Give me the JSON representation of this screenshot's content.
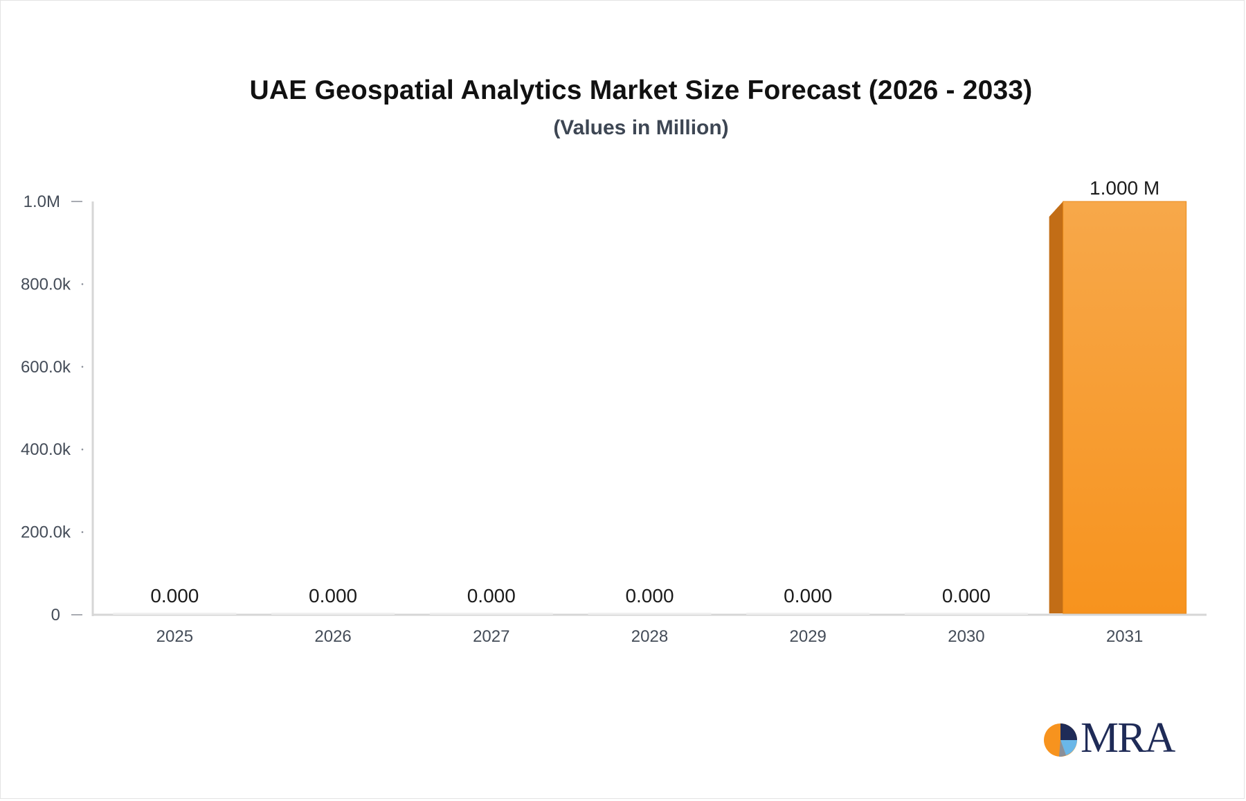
{
  "chart_data": {
    "type": "bar",
    "title": "UAE Geospatial Analytics Market Size Forecast (2026 - 2033)",
    "subtitle": "(Values in Million)",
    "categories": [
      "2025",
      "2026",
      "2027",
      "2028",
      "2029",
      "2030",
      "2031"
    ],
    "values": [
      0,
      0,
      0,
      0,
      0,
      0,
      1000000
    ],
    "data_labels": [
      "0.000",
      "0.000",
      "0.000",
      "0.000",
      "0.000",
      "0.000",
      "1.000 M"
    ],
    "y_ticks": [
      0,
      200000,
      400000,
      600000,
      800000,
      1000000
    ],
    "y_tick_labels": [
      "0",
      "200.0k",
      "400.0k",
      "600.0k",
      "800.0k",
      "1.0M"
    ],
    "ylim": [
      0,
      1000000
    ],
    "xlabel": "",
    "ylabel": "",
    "grid": false,
    "legend": "none",
    "colors": {
      "bar_light": "#f7a84a",
      "bar_dark": "#f7931e",
      "bar_side": "#c26d16",
      "empty_bar": "#efefef",
      "axis": "#d6d6d6",
      "tick_text": "#444c58",
      "label_text": "#1b1b1b"
    }
  },
  "logo": {
    "text": "MRA",
    "colors": [
      "#f7931e",
      "#1f2b57",
      "#6ab7e8"
    ]
  }
}
